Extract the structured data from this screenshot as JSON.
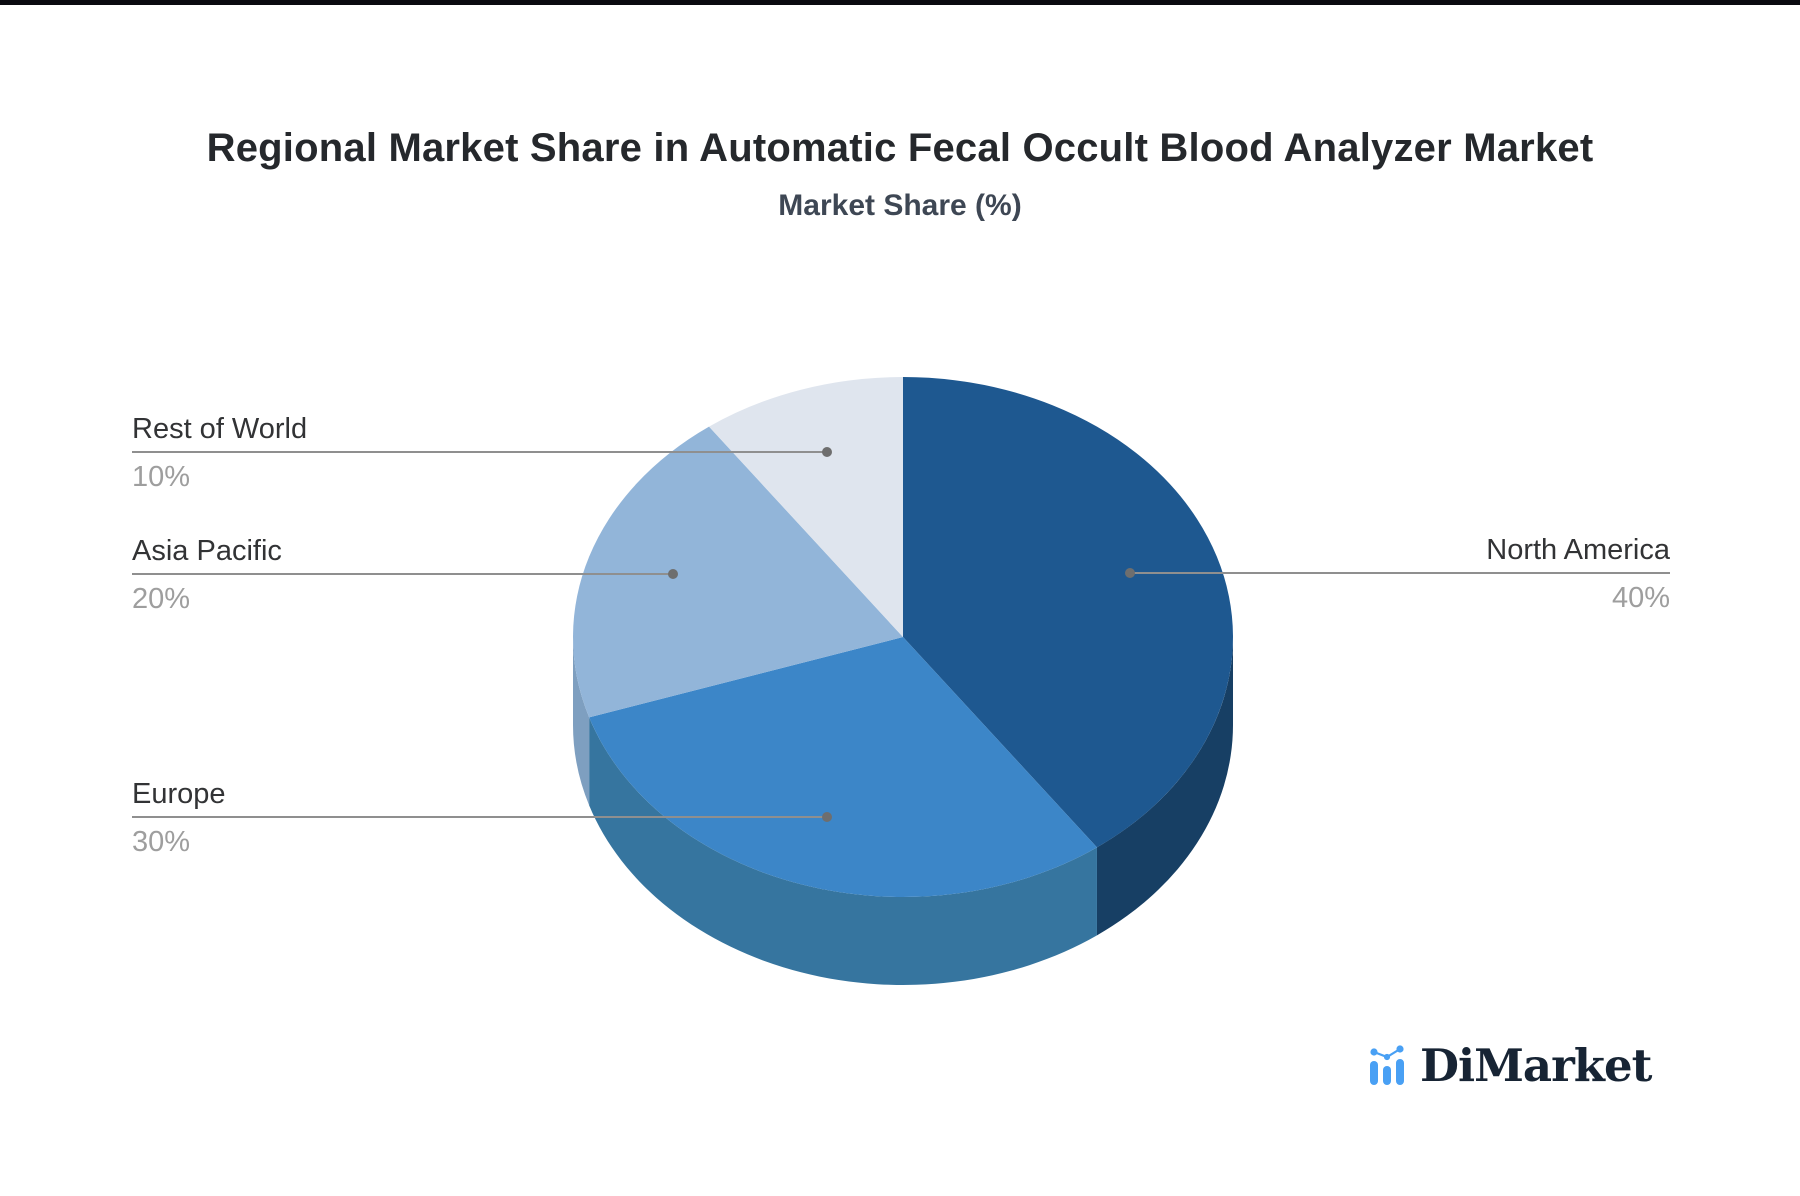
{
  "header": {
    "title": "Regional Market Share in Automatic Fecal Occult Blood Analyzer Market",
    "subtitle": "Market Share (%)"
  },
  "chart_data": {
    "type": "pie",
    "title": "Regional Market Share in Automatic Fecal Occult Blood Analyzer Market",
    "subtitle": "Market Share (%)",
    "unit": "%",
    "style_3d": true,
    "start_angle_deg": -90,
    "direction": "clockwise",
    "series": [
      {
        "name": "North America",
        "value": 40,
        "color": "#1e5890",
        "rim_color": "#173f64"
      },
      {
        "name": "Europe",
        "value": 30,
        "color": "#3c86c8",
        "rim_color": "#36759f"
      },
      {
        "name": "Asia Pacific",
        "value": 20,
        "color": "#92b5d9",
        "rim_color": "#7e9fc0"
      },
      {
        "name": "Rest of World",
        "value": 10,
        "color": "#dfe5ee",
        "rim_color": "#b9c4d4"
      }
    ],
    "legend_position": "callout-labels",
    "leader_line_color": "#8f8f8f",
    "leader_dot_color": "#6e6e6e",
    "label_name_color": "#323335",
    "label_value_color": "#9e9e9e"
  },
  "logo": {
    "text": "DiMarket",
    "icon": "bar-line-chart-icon",
    "icon_color": "#49a0f4",
    "text_color": "#172434"
  }
}
